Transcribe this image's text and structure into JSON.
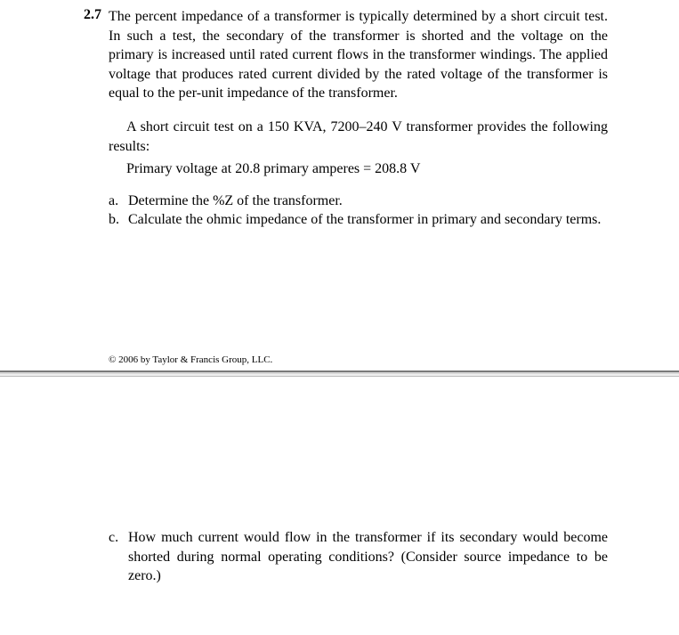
{
  "problem": {
    "number": "2.7",
    "intro": "The percent impedance of a transformer is typically determined by a short circuit test. In such a test, the secondary of the transformer is shorted and the voltage on the primary is increased until rated current flows in the transformer windings. The applied voltage that produces rated current divided by the rated voltage of the transformer is equal to the per-unit impedance of the transformer."
  },
  "setup": {
    "line1": "A short circuit test on a 150 KVA, 7200–240 V transformer provides the following results:",
    "line2": "Primary voltage at 20.8 primary amperes = 208.8 V"
  },
  "parts": {
    "a": {
      "label": "a.",
      "text": "Determine the %Z of the transformer."
    },
    "b": {
      "label": "b.",
      "text": "Calculate the ohmic impedance of the transformer in primary and secondary terms."
    },
    "c": {
      "label": "c.",
      "text": "How much current would flow in the transformer if its secondary would become shorted during normal operating conditions? (Consider source impedance to be zero.)"
    }
  },
  "copyright": "© 2006 by Taylor & Francis Group, LLC."
}
